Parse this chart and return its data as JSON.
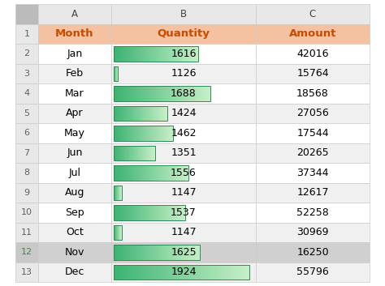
{
  "months": [
    "Jan",
    "Feb",
    "Mar",
    "Apr",
    "May",
    "Jun",
    "Jul",
    "Aug",
    "Sep",
    "Oct",
    "Nov",
    "Dec"
  ],
  "quantities": [
    1616,
    1126,
    1688,
    1424,
    1462,
    1351,
    1556,
    1147,
    1537,
    1147,
    1625,
    1924
  ],
  "amounts": [
    42016,
    15764,
    18568,
    27056,
    17544,
    20265,
    37344,
    12617,
    52258,
    30969,
    16250,
    55796
  ],
  "row_numbers": [
    2,
    3,
    4,
    5,
    6,
    7,
    8,
    9,
    10,
    11,
    12,
    13
  ],
  "header_bg": "#F4C2A1",
  "row_alt1": "#FFFFFF",
  "row_alt2": "#F0F0F0",
  "row_selected_bg": "#D0D0D0",
  "selected_row_idx": 10,
  "bar_color_dark": "#3CB371",
  "bar_color_light": "#C8F0C8",
  "bar_border": "#2E8B57",
  "grid_color": "#CCCCCC",
  "text_color": "#000000",
  "header_text_color": "#C84B00",
  "row_num_color": "#606060",
  "col_header_bg": "#E8E8E8",
  "corner_bg": "#BBBBBB",
  "col_headers": [
    "A",
    "B",
    "C"
  ],
  "col_names": [
    "Month",
    "Quantity",
    "Amount"
  ],
  "qty_min": 1100,
  "qty_max": 1950,
  "fig_width": 4.74,
  "fig_height": 3.53,
  "dpi": 100
}
